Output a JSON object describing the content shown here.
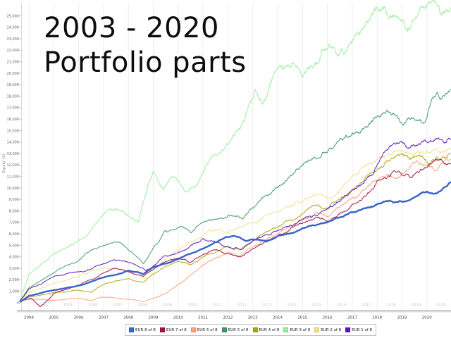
{
  "title": {
    "line1": "2003 - 2020",
    "line2": "Portfolio parts"
  },
  "chart_data": {
    "type": "line",
    "title": "2003 - 2020 Portfolio parts",
    "xlabel": "",
    "ylabel": "Equity ($)",
    "xlim": [
      2003.65,
      2020.95
    ],
    "ylim": [
      -800,
      26900
    ],
    "grid": "vertical-only",
    "legend_position": "bottom-center",
    "x_tick_labels": [
      "2004",
      "2005",
      "2006",
      "2007",
      "2008",
      "2009",
      "2010",
      "2011",
      "2012",
      "2013",
      "2014",
      "2015",
      "2016",
      "2017",
      "2018",
      "2019",
      "2020"
    ],
    "x_tick_secondary_row": "same years repeated in faint gray, offset right, above axis line",
    "y_tick_labels": [
      "0",
      "1,000",
      "2,000",
      "3,000",
      "4,000",
      "5,000",
      "6,000",
      "7,000",
      "8,000",
      "9,000",
      "10,000",
      "11,000",
      "12,000",
      "13,000",
      "14,000",
      "15,000",
      "16,000",
      "17,000",
      "18,000",
      "19,000",
      "20,000",
      "21,000",
      "22,000",
      "23,000",
      "24,000",
      "25,000"
    ],
    "colors": {
      "axis_line": "#9c9c9c",
      "axis_line_light": "#e2e2e2",
      "gridline": "#ededed",
      "tick_label_dark": "#3c3c3c",
      "tick_label_faint": "#c9c9c9",
      "y_tick_label": "#666666"
    },
    "series": [
      {
        "name": "EUR 8 of 8",
        "color": "#3a66c8",
        "width": 2.4,
        "points": [
          [
            2003.65,
            100
          ],
          [
            2004,
            600
          ],
          [
            2005,
            1100
          ],
          [
            2006,
            1500
          ],
          [
            2007,
            2200
          ],
          [
            2008,
            2800
          ],
          [
            2008.6,
            2500
          ],
          [
            2009,
            3100
          ],
          [
            2010,
            3800
          ],
          [
            2011,
            4700
          ],
          [
            2011.9,
            5700
          ],
          [
            2012.3,
            5800
          ],
          [
            2012.7,
            5400
          ],
          [
            2013.2,
            5500
          ],
          [
            2013.6,
            5400
          ],
          [
            2014,
            5800
          ],
          [
            2015,
            6500
          ],
          [
            2016,
            7000
          ],
          [
            2017,
            7900
          ],
          [
            2018,
            8600
          ],
          [
            2018.5,
            8900
          ],
          [
            2019,
            8800
          ],
          [
            2019.6,
            9300
          ],
          [
            2020,
            9700
          ],
          [
            2020.3,
            9500
          ],
          [
            2020.95,
            10500
          ]
        ]
      },
      {
        "name": "EUR 7 of 8",
        "color": "#a81048",
        "width": 1,
        "points": [
          [
            2003.65,
            150
          ],
          [
            2004.1,
            400
          ],
          [
            2004.45,
            -350
          ],
          [
            2004.8,
            300
          ],
          [
            2005,
            800
          ],
          [
            2006,
            1500
          ],
          [
            2007,
            2600
          ],
          [
            2007.5,
            3000
          ],
          [
            2008,
            2700
          ],
          [
            2008.6,
            2300
          ],
          [
            2009,
            2900
          ],
          [
            2009.5,
            3600
          ],
          [
            2010,
            3900
          ],
          [
            2010.5,
            3500
          ],
          [
            2011,
            4200
          ],
          [
            2011.5,
            4600
          ],
          [
            2012,
            4300
          ],
          [
            2012.5,
            4000
          ],
          [
            2013,
            4700
          ],
          [
            2013.5,
            5300
          ],
          [
            2014,
            5800
          ],
          [
            2014.5,
            6400
          ],
          [
            2015,
            6900
          ],
          [
            2015.5,
            7400
          ],
          [
            2016,
            7100
          ],
          [
            2016.5,
            7800
          ],
          [
            2017,
            8600
          ],
          [
            2017.5,
            9300
          ],
          [
            2018,
            10600
          ],
          [
            2018.7,
            11500
          ],
          [
            2019.4,
            10900
          ],
          [
            2020,
            11800
          ],
          [
            2020.4,
            12500
          ],
          [
            2020.7,
            12100
          ],
          [
            2020.95,
            12100
          ]
        ]
      },
      {
        "name": "EUR 6 of 8",
        "color": "#ffa078",
        "width": 1,
        "points": [
          [
            2003.65,
            100
          ],
          [
            2004,
            300
          ],
          [
            2005,
            200
          ],
          [
            2006,
            400
          ],
          [
            2006.5,
            200
          ],
          [
            2007,
            500
          ],
          [
            2008,
            300
          ],
          [
            2008.6,
            100
          ],
          [
            2009,
            400
          ],
          [
            2009.5,
            800
          ],
          [
            2010,
            1600
          ],
          [
            2010.5,
            2400
          ],
          [
            2011,
            3300
          ],
          [
            2011.5,
            3900
          ],
          [
            2012,
            4400
          ],
          [
            2012.5,
            4100
          ],
          [
            2013,
            4900
          ],
          [
            2013.5,
            5500
          ],
          [
            2014,
            6000
          ],
          [
            2014.5,
            6600
          ],
          [
            2015,
            7200
          ],
          [
            2015.5,
            7800
          ],
          [
            2016,
            7500
          ],
          [
            2016.5,
            8300
          ],
          [
            2017,
            9200
          ],
          [
            2017.5,
            9900
          ],
          [
            2018,
            10600
          ],
          [
            2018.4,
            11200
          ],
          [
            2018.8,
            10800
          ],
          [
            2019.2,
            11500
          ],
          [
            2019.6,
            12400
          ],
          [
            2020,
            12000
          ],
          [
            2020.3,
            11500
          ],
          [
            2020.6,
            12200
          ],
          [
            2020.95,
            12500
          ]
        ]
      },
      {
        "name": "EUR 5 of 8",
        "color": "#3c9a64",
        "width": 1,
        "points": [
          [
            2003.65,
            200
          ],
          [
            2004,
            1300
          ],
          [
            2005,
            2600
          ],
          [
            2005.6,
            3300
          ],
          [
            2006,
            3700
          ],
          [
            2006.5,
            4600
          ],
          [
            2007,
            5000
          ],
          [
            2007.6,
            5300
          ],
          [
            2008,
            4600
          ],
          [
            2008.6,
            3400
          ],
          [
            2009,
            4800
          ],
          [
            2009.5,
            6300
          ],
          [
            2010,
            6600
          ],
          [
            2010.5,
            6100
          ],
          [
            2011,
            7000
          ],
          [
            2011.5,
            7300
          ],
          [
            2012,
            7600
          ],
          [
            2012.6,
            7300
          ],
          [
            2013,
            8300
          ],
          [
            2014,
            10000
          ],
          [
            2015,
            12000
          ],
          [
            2015.6,
            12600
          ],
          [
            2016,
            13100
          ],
          [
            2016.5,
            14300
          ],
          [
            2017,
            14800
          ],
          [
            2017.5,
            15300
          ],
          [
            2018,
            16200
          ],
          [
            2018.4,
            16800
          ],
          [
            2019,
            15600
          ],
          [
            2019.5,
            16000
          ],
          [
            2019.9,
            15700
          ],
          [
            2020.4,
            18300
          ],
          [
            2020.6,
            17800
          ],
          [
            2020.95,
            18600
          ]
        ]
      },
      {
        "name": "EUR 4 of 8",
        "color": "#aba90a",
        "width": 1,
        "points": [
          [
            2003.65,
            150
          ],
          [
            2004,
            500
          ],
          [
            2005,
            900
          ],
          [
            2006,
            1100
          ],
          [
            2006.5,
            900
          ],
          [
            2007,
            1600
          ],
          [
            2008,
            2100
          ],
          [
            2008.6,
            1800
          ],
          [
            2009,
            2500
          ],
          [
            2009.5,
            3200
          ],
          [
            2010,
            3600
          ],
          [
            2010.5,
            3300
          ],
          [
            2011,
            4000
          ],
          [
            2011.5,
            4400
          ],
          [
            2012,
            4900
          ],
          [
            2012.5,
            4600
          ],
          [
            2013,
            5400
          ],
          [
            2013.5,
            6100
          ],
          [
            2014,
            6600
          ],
          [
            2014.5,
            7200
          ],
          [
            2015,
            7800
          ],
          [
            2015.5,
            8500
          ],
          [
            2016,
            8200
          ],
          [
            2016.5,
            9000
          ],
          [
            2017,
            9900
          ],
          [
            2017.5,
            10800
          ],
          [
            2018,
            11600
          ],
          [
            2018.4,
            12400
          ],
          [
            2018.8,
            12800
          ],
          [
            2019.3,
            12500
          ],
          [
            2019.7,
            12900
          ],
          [
            2020.1,
            11900
          ],
          [
            2020.4,
            12700
          ],
          [
            2020.95,
            13000
          ]
        ]
      },
      {
        "name": "EUR 3 of 8",
        "color": "#98ee9a",
        "width": 1,
        "points": [
          [
            2003.65,
            250
          ],
          [
            2004,
            2500
          ],
          [
            2004.5,
            3400
          ],
          [
            2005,
            4300
          ],
          [
            2005.5,
            4800
          ],
          [
            2006,
            5400
          ],
          [
            2006.5,
            6300
          ],
          [
            2007,
            7700
          ],
          [
            2007.5,
            8200
          ],
          [
            2008,
            7600
          ],
          [
            2008.4,
            7000
          ],
          [
            2009,
            11500
          ],
          [
            2009.4,
            9900
          ],
          [
            2009.8,
            10900
          ],
          [
            2010.3,
            9700
          ],
          [
            2010.8,
            10400
          ],
          [
            2011.4,
            12800
          ],
          [
            2012,
            13800
          ],
          [
            2012.5,
            15200
          ],
          [
            2013.1,
            18600
          ],
          [
            2013.4,
            17300
          ],
          [
            2014.1,
            20600
          ],
          [
            2014.6,
            20900
          ],
          [
            2015,
            19600
          ],
          [
            2015.8,
            22100
          ],
          [
            2016.1,
            22400
          ],
          [
            2016.7,
            21800
          ],
          [
            2017.2,
            23600
          ],
          [
            2018,
            25700
          ],
          [
            2018.8,
            24900
          ],
          [
            2019.1,
            24100
          ],
          [
            2019.6,
            24900
          ],
          [
            2020.4,
            26000
          ],
          [
            2020.7,
            25300
          ],
          [
            2020.95,
            25700
          ]
        ]
      },
      {
        "name": "EUR 2 of 8",
        "color": "#f2de8c",
        "width": 1,
        "points": [
          [
            2003.65,
            200
          ],
          [
            2004,
            900
          ],
          [
            2005,
            1700
          ],
          [
            2006,
            2300
          ],
          [
            2007,
            3100
          ],
          [
            2008,
            2700
          ],
          [
            2008.6,
            2200
          ],
          [
            2009,
            3000
          ],
          [
            2009.6,
            4100
          ],
          [
            2010,
            4600
          ],
          [
            2010.5,
            5300
          ],
          [
            2011,
            5900
          ],
          [
            2011.5,
            6400
          ],
          [
            2012,
            6100
          ],
          [
            2012.5,
            6600
          ],
          [
            2013,
            7000
          ],
          [
            2013.5,
            7600
          ],
          [
            2014,
            7900
          ],
          [
            2014.5,
            8400
          ],
          [
            2015,
            8800
          ],
          [
            2015.5,
            9400
          ],
          [
            2016,
            9100
          ],
          [
            2016.5,
            9800
          ],
          [
            2017,
            11000
          ],
          [
            2017.5,
            12000
          ],
          [
            2018,
            12600
          ],
          [
            2018.7,
            13200
          ],
          [
            2019.3,
            13000
          ],
          [
            2020,
            13200
          ],
          [
            2020.4,
            13400
          ],
          [
            2020.7,
            13100
          ],
          [
            2020.95,
            13400
          ]
        ]
      },
      {
        "name": "EUR 1 of 8",
        "color": "#5a18b8",
        "width": 1,
        "points": [
          [
            2003.65,
            200
          ],
          [
            2004,
            1200
          ],
          [
            2004.5,
            1600
          ],
          [
            2005,
            2300
          ],
          [
            2006,
            2700
          ],
          [
            2007,
            3400
          ],
          [
            2007.5,
            3700
          ],
          [
            2008,
            3500
          ],
          [
            2008.7,
            2800
          ],
          [
            2009,
            3200
          ],
          [
            2009.5,
            4100
          ],
          [
            2010,
            4400
          ],
          [
            2010.5,
            5000
          ],
          [
            2011,
            5600
          ],
          [
            2011.5,
            5300
          ],
          [
            2012,
            4900
          ],
          [
            2012.6,
            4700
          ],
          [
            2013,
            5400
          ],
          [
            2013.5,
            5900
          ],
          [
            2014,
            6300
          ],
          [
            2015,
            7300
          ],
          [
            2016,
            8200
          ],
          [
            2016.5,
            8800
          ],
          [
            2017,
            9800
          ],
          [
            2017.5,
            10600
          ],
          [
            2018,
            12000
          ],
          [
            2018.7,
            13900
          ],
          [
            2019.3,
            13500
          ],
          [
            2019.6,
            13700
          ],
          [
            2020,
            14000
          ],
          [
            2020.4,
            14300
          ],
          [
            2020.7,
            13900
          ],
          [
            2020.95,
            14200
          ]
        ]
      }
    ]
  }
}
